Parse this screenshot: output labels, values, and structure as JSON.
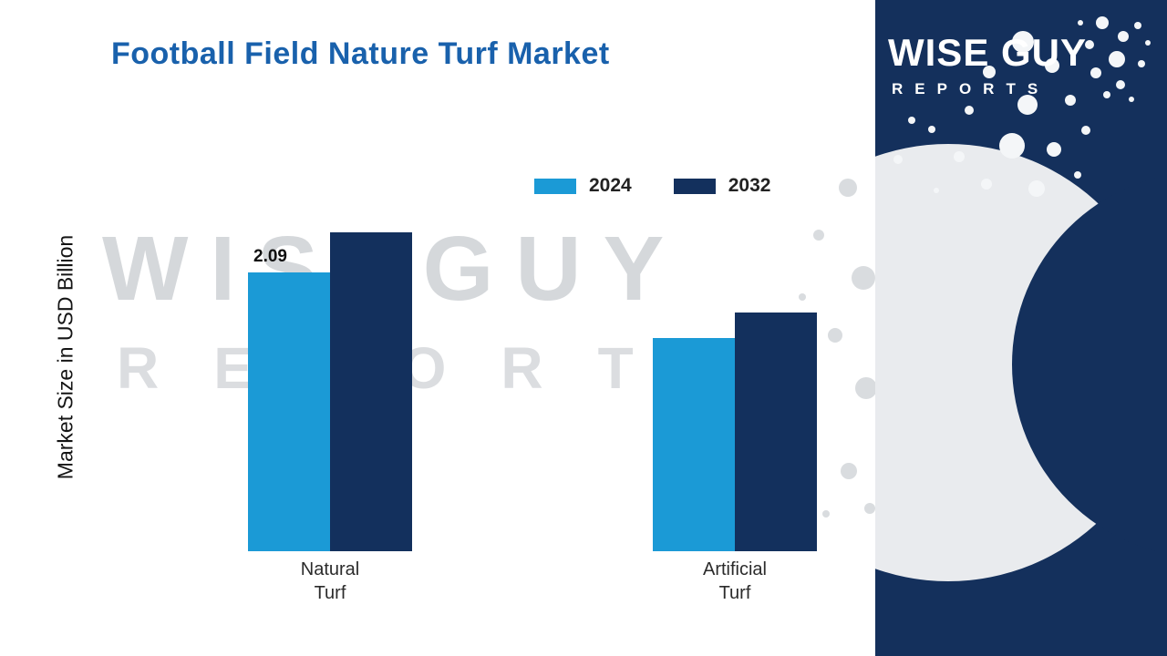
{
  "title": "Football Field Nature Turf Market",
  "ylabel": "Market Size in USD Billion",
  "watermark": {
    "line1": "WISEGUY",
    "line2": "REPORTS"
  },
  "logo": {
    "line1": "WISE GUY",
    "line2": "REPORTS"
  },
  "colors": {
    "series_2024": "#1b9ad6",
    "series_2032": "#13305d",
    "title_blue": "#1961ac",
    "panel_navy": "#14305c",
    "watermark_gray": "#d5d8db"
  },
  "chart_data": {
    "type": "bar",
    "title": "Football Field Nature Turf Market",
    "ylabel": "Market Size in USD Billion",
    "value_unit": "USD Billion",
    "categories": [
      "Natural Turf",
      "Artificial Turf"
    ],
    "series": [
      {
        "name": "2024",
        "color": "#1b9ad6",
        "values": [
          2.09,
          1.6
        ],
        "data_labels": [
          "2.09",
          ""
        ]
      },
      {
        "name": "2032",
        "color": "#13305d",
        "values": [
          2.39,
          1.79
        ],
        "data_labels": [
          "",
          ""
        ]
      }
    ],
    "ylim": [
      0,
      2.6
    ],
    "grid": false,
    "legend_position": "top",
    "y_ticks_shown": false
  }
}
